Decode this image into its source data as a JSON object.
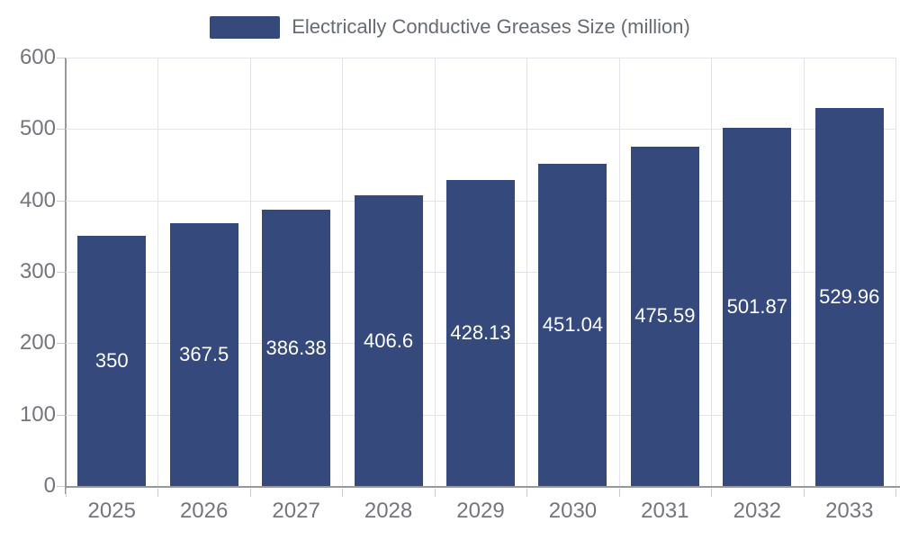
{
  "chart_data": {
    "type": "bar",
    "legend": "Electrically Conductive Greases Size (million)",
    "categories": [
      "2025",
      "2026",
      "2027",
      "2028",
      "2029",
      "2030",
      "2031",
      "2032",
      "2033"
    ],
    "values": [
      350,
      367.5,
      386.38,
      406.6,
      428.13,
      451.04,
      475.59,
      501.87,
      529.96
    ],
    "value_labels": [
      "350",
      "367.5",
      "386.38",
      "406.6",
      "428.13",
      "451.04",
      "475.59",
      "501.87",
      "529.96"
    ],
    "ylim": [
      0,
      600
    ],
    "y_ticks": [
      0,
      100,
      200,
      300,
      400,
      500,
      600
    ],
    "grid": true,
    "legend_position": "top",
    "value_label_position": "inside-center",
    "colors": {
      "bar": "#35497D",
      "value_text": "#ffffff",
      "axis_text": "#74767c",
      "legend_text": "#666b74",
      "grid_line": "#e2e4e9",
      "axis_line": "#969a9f"
    }
  }
}
